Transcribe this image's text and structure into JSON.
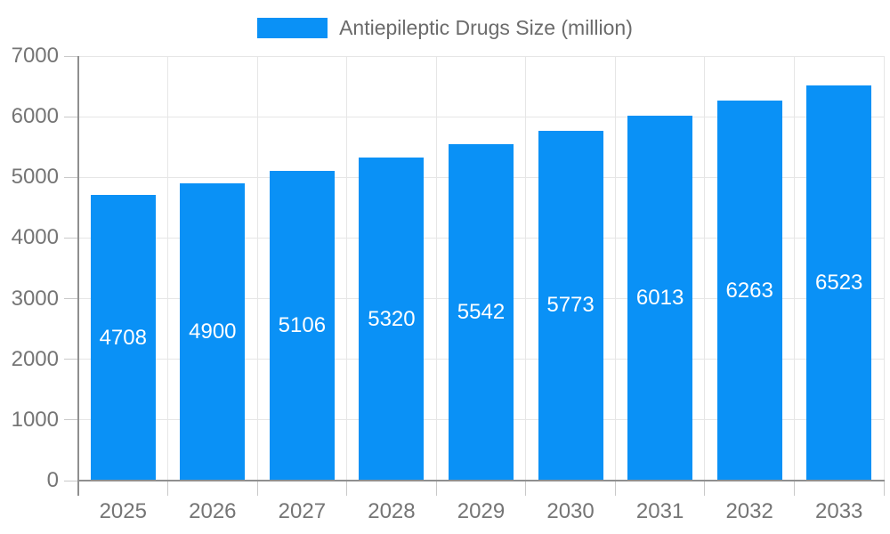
{
  "chart_data": {
    "type": "bar",
    "title": "Antiepileptic Drugs Size (million)",
    "legend": {
      "position": "top",
      "items": [
        "Antiepileptic Drugs Size (million)"
      ]
    },
    "categories": [
      "2025",
      "2026",
      "2027",
      "2028",
      "2029",
      "2030",
      "2031",
      "2032",
      "2033"
    ],
    "series": [
      {
        "name": "Antiepileptic Drugs Size (million)",
        "values": [
          4708,
          4900,
          5106,
          5320,
          5542,
          5773,
          6013,
          6263,
          6523
        ]
      }
    ],
    "value_labels_visible": true,
    "xlabel": "",
    "ylabel": "",
    "ylim": [
      0,
      7000
    ],
    "y_ticks": [
      0,
      1000,
      2000,
      3000,
      4000,
      5000,
      6000,
      7000
    ],
    "grid": true,
    "colors": {
      "bar": "#0A91F6",
      "bar_value_label": "#FFFFFF",
      "axis_label": "#757575",
      "legend_label": "#6B6B6B",
      "gridline": "#E6E6E6",
      "axis_line": "#8F8F8F",
      "tick": "#C9C9C9",
      "background": "#FFFFFF"
    }
  }
}
